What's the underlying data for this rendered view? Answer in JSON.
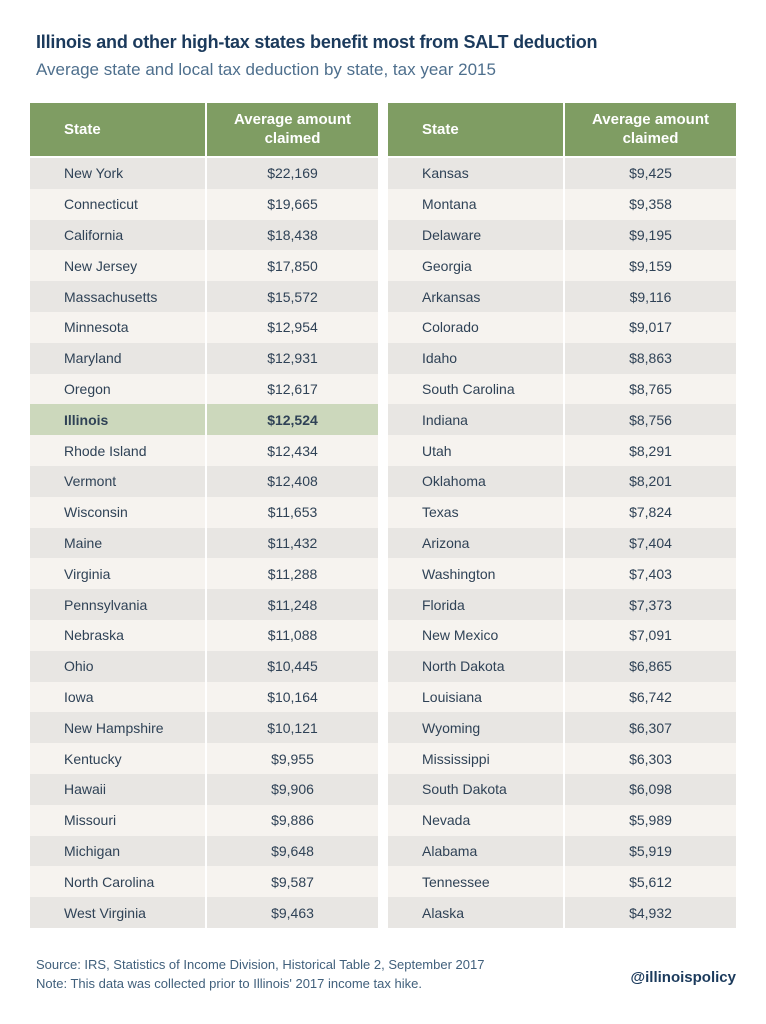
{
  "page": {
    "title": "Illinois and other high-tax states benefit most from SALT deduction",
    "subtitle": "Average state and local tax deduction by state, tax year 2015"
  },
  "footer": {
    "source_line": "Source: IRS, Statistics of Income Division, Historical Table 2, September 2017",
    "note_line": "Note: This data was collected prior to Illinois' 2017 income tax hike.",
    "handle": "@illinoispolicy"
  },
  "colors": {
    "header_green": "#7f9d63",
    "highlight_green": "#ccd8bc",
    "row_gray": "#e8e6e3",
    "row_cream": "#f6f3ef",
    "title_navy": "#1b3a5c",
    "subtitle_slate": "#4e6f8d",
    "text_navy": "#2f4256",
    "footer_slate": "#41607c"
  },
  "chart_data": {
    "type": "table",
    "title": "Illinois and other high-tax states benefit most from SALT deduction",
    "subtitle": "Average state and local tax deduction by state, tax year 2015",
    "columns": [
      "State",
      "Average amount claimed"
    ],
    "highlighted_state": "Illinois",
    "left_table": [
      {
        "state": "New York",
        "amount": "$22,169",
        "value": 22169
      },
      {
        "state": "Connecticut",
        "amount": "$19,665",
        "value": 19665
      },
      {
        "state": "California",
        "amount": "$18,438",
        "value": 18438
      },
      {
        "state": "New Jersey",
        "amount": "$17,850",
        "value": 17850
      },
      {
        "state": "Massachusetts",
        "amount": "$15,572",
        "value": 15572
      },
      {
        "state": "Minnesota",
        "amount": "$12,954",
        "value": 12954
      },
      {
        "state": "Maryland",
        "amount": "$12,931",
        "value": 12931
      },
      {
        "state": "Oregon",
        "amount": "$12,617",
        "value": 12617
      },
      {
        "state": "Illinois",
        "amount": "$12,524",
        "value": 12524
      },
      {
        "state": "Rhode Island",
        "amount": "$12,434",
        "value": 12434
      },
      {
        "state": "Vermont",
        "amount": "$12,408",
        "value": 12408
      },
      {
        "state": "Wisconsin",
        "amount": "$11,653",
        "value": 11653
      },
      {
        "state": "Maine",
        "amount": "$11,432",
        "value": 11432
      },
      {
        "state": "Virginia",
        "amount": "$11,288",
        "value": 11288
      },
      {
        "state": "Pennsylvania",
        "amount": "$11,248",
        "value": 11248
      },
      {
        "state": "Nebraska",
        "amount": "$11,088",
        "value": 11088
      },
      {
        "state": "Ohio",
        "amount": "$10,445",
        "value": 10445
      },
      {
        "state": "Iowa",
        "amount": "$10,164",
        "value": 10164
      },
      {
        "state": "New Hampshire",
        "amount": "$10,121",
        "value": 10121
      },
      {
        "state": "Kentucky",
        "amount": "$9,955",
        "value": 9955
      },
      {
        "state": "Hawaii",
        "amount": "$9,906",
        "value": 9906
      },
      {
        "state": "Missouri",
        "amount": "$9,886",
        "value": 9886
      },
      {
        "state": "Michigan",
        "amount": "$9,648",
        "value": 9648
      },
      {
        "state": "North Carolina",
        "amount": "$9,587",
        "value": 9587
      },
      {
        "state": "West Virginia",
        "amount": "$9,463",
        "value": 9463
      }
    ],
    "right_table": [
      {
        "state": "Kansas",
        "amount": "$9,425",
        "value": 9425
      },
      {
        "state": "Montana",
        "amount": "$9,358",
        "value": 9358
      },
      {
        "state": "Delaware",
        "amount": "$9,195",
        "value": 9195
      },
      {
        "state": "Georgia",
        "amount": "$9,159",
        "value": 9159
      },
      {
        "state": "Arkansas",
        "amount": "$9,116",
        "value": 9116
      },
      {
        "state": "Colorado",
        "amount": "$9,017",
        "value": 9017
      },
      {
        "state": "Idaho",
        "amount": "$8,863",
        "value": 8863
      },
      {
        "state": "South Carolina",
        "amount": "$8,765",
        "value": 8765
      },
      {
        "state": "Indiana",
        "amount": "$8,756",
        "value": 8756
      },
      {
        "state": "Utah",
        "amount": "$8,291",
        "value": 8291
      },
      {
        "state": "Oklahoma",
        "amount": "$8,201",
        "value": 8201
      },
      {
        "state": "Texas",
        "amount": "$7,824",
        "value": 7824
      },
      {
        "state": "Arizona",
        "amount": "$7,404",
        "value": 7404
      },
      {
        "state": "Washington",
        "amount": "$7,403",
        "value": 7403
      },
      {
        "state": "Florida",
        "amount": "$7,373",
        "value": 7373
      },
      {
        "state": "New Mexico",
        "amount": "$7,091",
        "value": 7091
      },
      {
        "state": "North Dakota",
        "amount": "$6,865",
        "value": 6865
      },
      {
        "state": "Louisiana",
        "amount": "$6,742",
        "value": 6742
      },
      {
        "state": "Wyoming",
        "amount": "$6,307",
        "value": 6307
      },
      {
        "state": "Mississippi",
        "amount": "$6,303",
        "value": 6303
      },
      {
        "state": "South Dakota",
        "amount": "$6,098",
        "value": 6098
      },
      {
        "state": "Nevada",
        "amount": "$5,989",
        "value": 5989
      },
      {
        "state": "Alabama",
        "amount": "$5,919",
        "value": 5919
      },
      {
        "state": "Tennessee",
        "amount": "$5,612",
        "value": 5612
      },
      {
        "state": "Alaska",
        "amount": "$4,932",
        "value": 4932
      }
    ]
  }
}
